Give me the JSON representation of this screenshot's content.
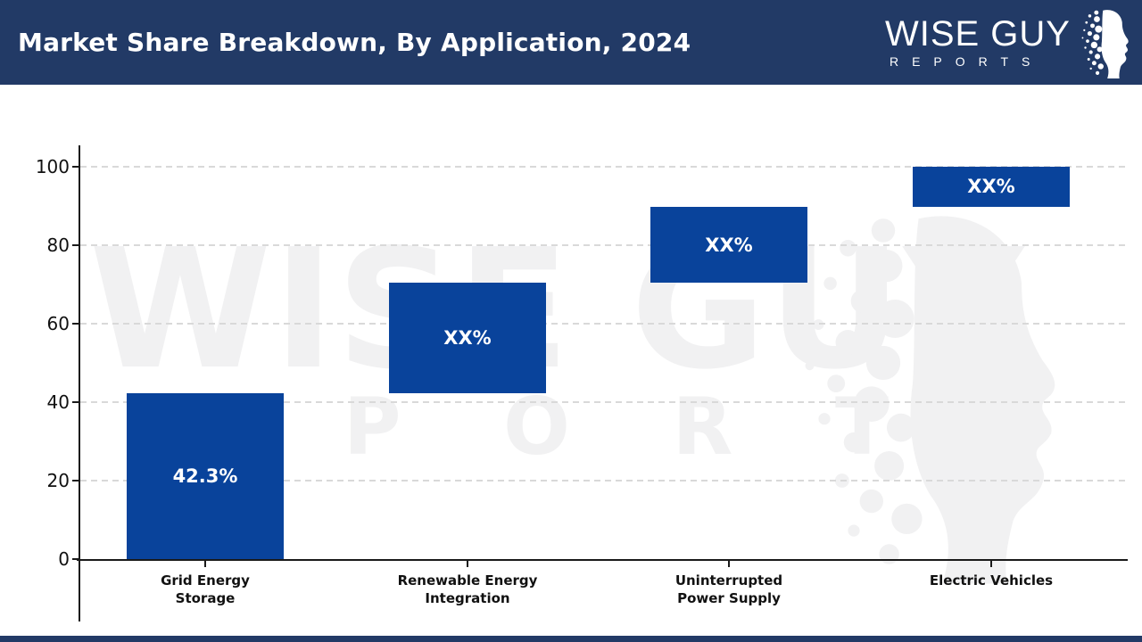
{
  "header": {
    "title": "Market Share Breakdown, By Application, 2024",
    "logo": {
      "wordmark": "WISE GUY",
      "sub": "REPORTS"
    }
  },
  "watermark": {
    "line1": "WISE GUY",
    "line2": "P O R T S"
  },
  "chart_data": {
    "type": "bar",
    "subtype": "waterfall",
    "title": "Market Share Breakdown, By Application, 2024",
    "categories": [
      [
        "Grid Energy",
        "Storage"
      ],
      [
        "Renewable Energy",
        "Integration"
      ],
      [
        "Uninterrupted",
        "Power Supply"
      ],
      [
        "Electric Vehicles"
      ]
    ],
    "segments": [
      {
        "category": "Grid Energy Storage",
        "start": 0,
        "end": 42.3,
        "value_label": "42.3%"
      },
      {
        "category": "Renewable Energy Integration",
        "start": 42.3,
        "end": 70.4,
        "value_label": "XX%"
      },
      {
        "category": "Uninterrupted Power Supply",
        "start": 70.4,
        "end": 89.8,
        "value_label": "XX%"
      },
      {
        "category": "Electric Vehicles",
        "start": 89.8,
        "end": 100,
        "value_label": "XX%"
      }
    ],
    "y_ticks": [
      0,
      20,
      40,
      60,
      80,
      100
    ],
    "ylim": [
      0,
      105
    ],
    "xlabel": "",
    "ylabel": "",
    "grid": "horizontal-dashed",
    "legend": "none",
    "colors": {
      "bar": "#09439b",
      "header_bg": "#223a66",
      "grid_line": "#d9d9d9",
      "watermark": "#f1f1f2",
      "axis": "#1a1a1a",
      "value_label": "#ffffff"
    }
  }
}
